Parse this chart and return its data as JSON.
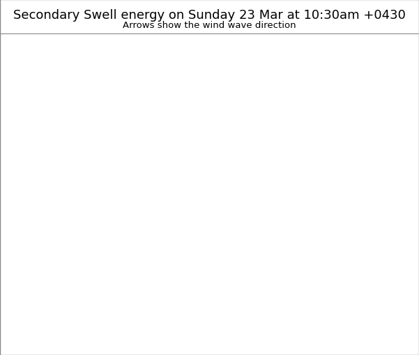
{
  "title": "Secondary Swell energy on Sunday 23 Mar at 10:30am +0430",
  "subtitle": "Arrows show the wind wave direction",
  "title_fontsize": 13,
  "subtitle_fontsize": 9.5,
  "fig_width": 6.01,
  "fig_height": 5.1,
  "dpi": 100,
  "extent": [
    43.0,
    83.0,
    20.0,
    47.0
  ],
  "background_color": "#ffffff",
  "land_color": "#aaaaaa",
  "water_color": "#000000",
  "border_linewidth": 0.5,
  "border_color": "black"
}
